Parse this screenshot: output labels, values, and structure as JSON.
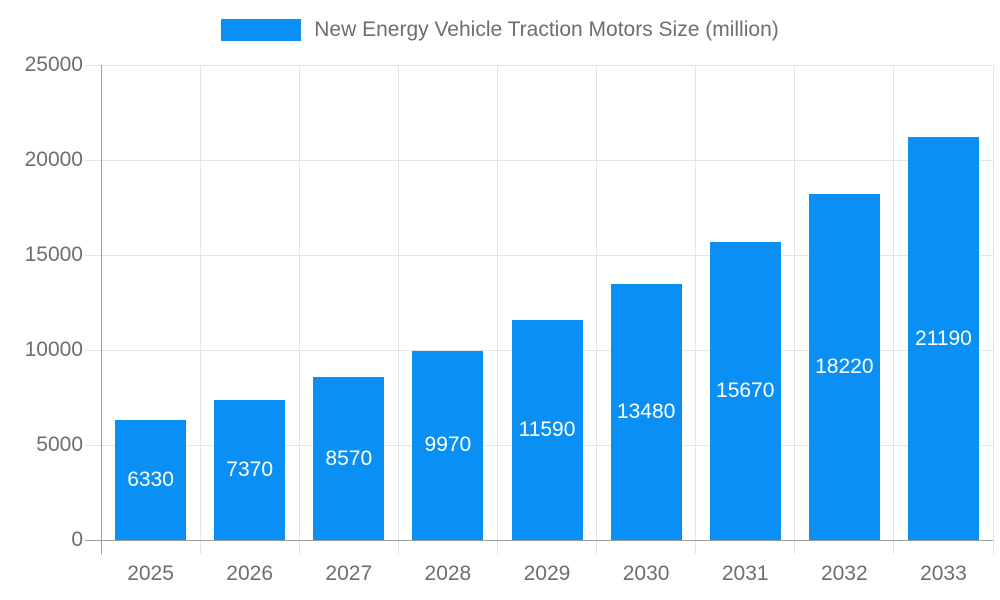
{
  "chart_data": {
    "type": "bar",
    "title": "New Energy Vehicle Traction Motors Size (million)",
    "series_name": "New Energy Vehicle Traction Motors Size (million)",
    "categories": [
      "2025",
      "2026",
      "2027",
      "2028",
      "2029",
      "2030",
      "2031",
      "2032",
      "2033"
    ],
    "values": [
      6330,
      7370,
      8570,
      9970,
      11590,
      13480,
      15670,
      18220,
      21190
    ],
    "value_labels": [
      "6330",
      "7370",
      "8570",
      "9970",
      "11590",
      "13480",
      "15670",
      "18220",
      "21190"
    ],
    "xlabel": "",
    "ylabel": "",
    "ylim": [
      0,
      25000
    ],
    "yticks": [
      0,
      5000,
      10000,
      15000,
      20000,
      25000
    ],
    "ytick_labels": [
      "0",
      "5000",
      "10000",
      "15000",
      "20000",
      "25000"
    ],
    "grid": true,
    "legend_position": "top",
    "value_labels_shown": true,
    "value_label_position": "center-inside"
  },
  "colors": {
    "bar": "#0A90F5",
    "grid": "#E5E5E5",
    "axis": "#A0A0A0",
    "tick_text": "#6E6E6E",
    "bar_label": "#FFFFFF",
    "background": "#FFFFFF"
  }
}
